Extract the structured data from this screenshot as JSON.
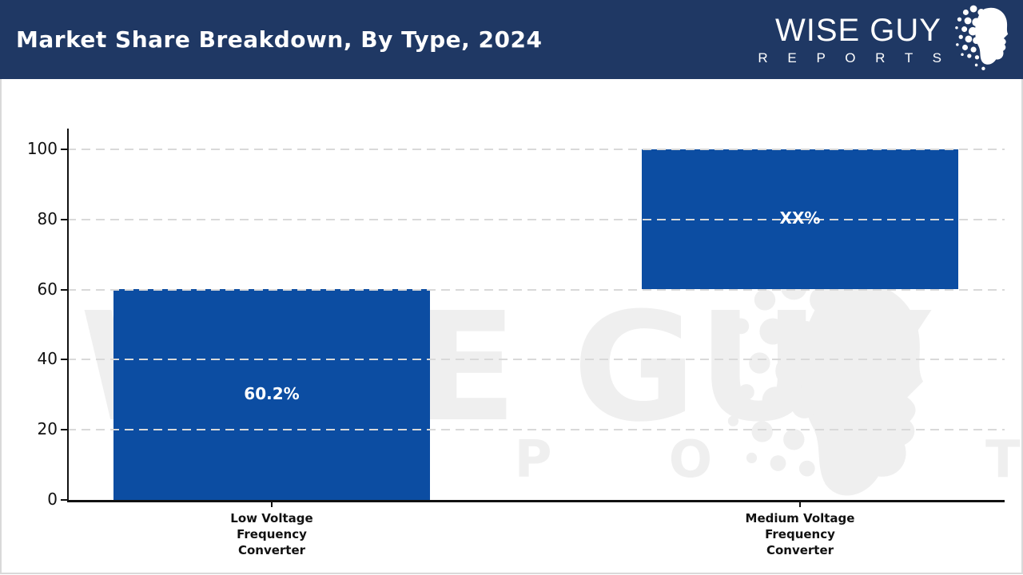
{
  "header": {
    "title": "Market Share Breakdown, By Type, 2024",
    "logo": {
      "primary": "WISE GUY",
      "secondary": "R E P O R T S"
    }
  },
  "watermark": {
    "primary": "WISE GUY",
    "secondary": "R E P O R T S"
  },
  "chart_data": {
    "type": "bar",
    "title": "Market Share Breakdown, By Type, 2024",
    "categories": [
      "Low Voltage Frequency Converter",
      "Medium Voltage Frequency Converter"
    ],
    "bars": [
      {
        "category_lines": [
          "Low Voltage",
          "Frequency",
          "Converter"
        ],
        "start": 0,
        "end": 60.2,
        "value_label": "60.2%"
      },
      {
        "category_lines": [
          "Medium Voltage",
          "Frequency",
          "Converter"
        ],
        "start": 60.2,
        "end": 100,
        "value_label": "XX%"
      }
    ],
    "yticks": [
      0,
      20,
      40,
      60,
      80,
      100
    ],
    "ylim": [
      0,
      100
    ],
    "xlabel": "",
    "ylabel": "",
    "grid": "horizontal dashed lines drawn over bars",
    "legend": "none"
  },
  "colors": {
    "header_bg": "#1f3864",
    "bar": "#0c4da2",
    "grid": "#d9d9d9",
    "axis": "#111111",
    "watermark": "#efefef",
    "title_text": "#ffffff"
  }
}
